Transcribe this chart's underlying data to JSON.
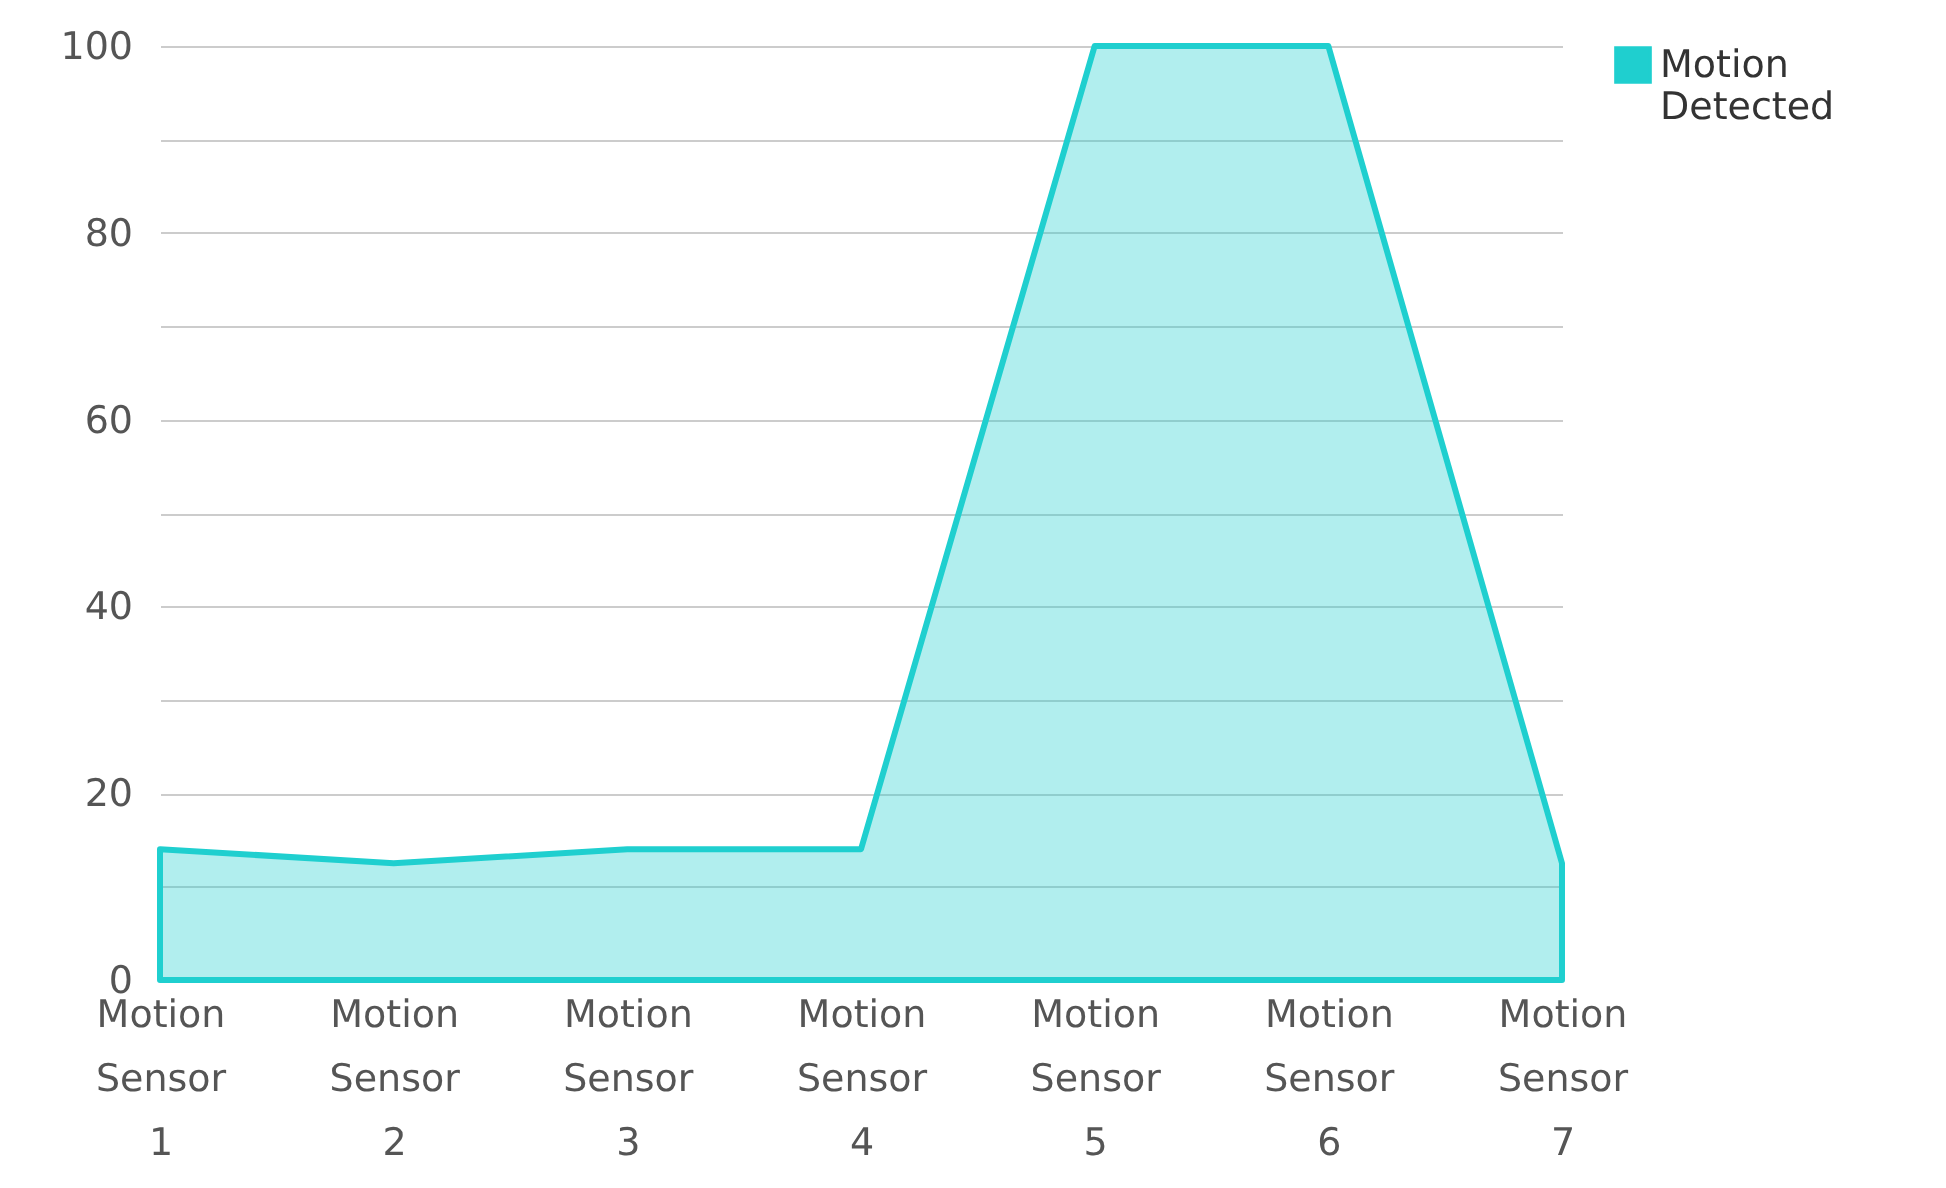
{
  "chart_data": {
    "type": "area",
    "categories": [
      "Motion Sensor 1",
      "Motion Sensor 2",
      "Motion Sensor 3",
      "Motion Sensor 4",
      "Motion Sensor 5",
      "Motion Sensor 6",
      "Motion Sensor 7"
    ],
    "series": [
      {
        "name": "Motion Detected",
        "color": "#1fcfcf",
        "values": [
          14,
          12.5,
          14,
          14,
          100,
          100,
          12.5
        ]
      }
    ],
    "ylim": [
      0,
      100
    ],
    "yticks": [
      0,
      {
        "value": 10,
        "label": null
      },
      20,
      {
        "value": 30,
        "label": null
      },
      40,
      {
        "value": 50,
        "label": null
      },
      60,
      {
        "value": 70,
        "label": null
      },
      80,
      {
        "value": 90,
        "label": null
      },
      100
    ],
    "grid": "y",
    "legend": "top right"
  }
}
